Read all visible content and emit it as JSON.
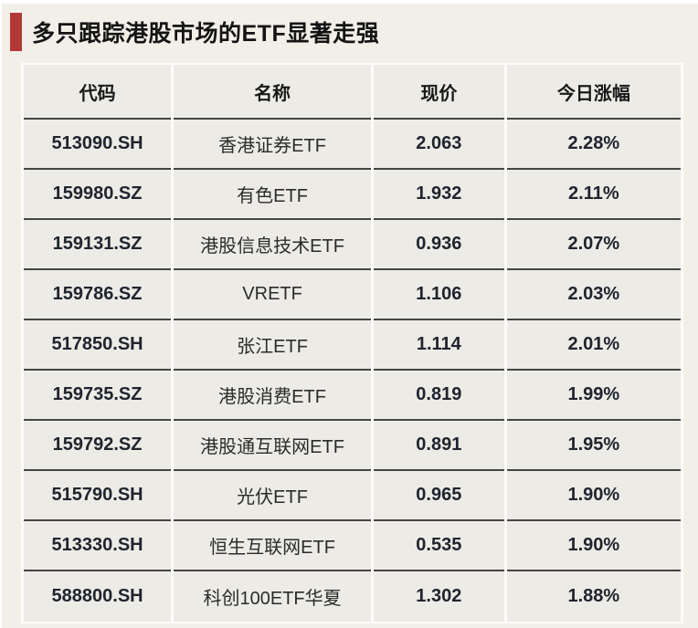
{
  "headline": {
    "title": "多只跟踪港股市场的ETF显著走强"
  },
  "colors": {
    "accent_bar": "#b23a34",
    "page_background": "#f2efe9",
    "cell_background": "#ecebe6",
    "row_divider": "#454545",
    "column_gap": "#fcfbf8",
    "text": "#20242e"
  },
  "chart_data": {
    "type": "table",
    "title": "多只跟踪港股市场的ETF显著走强",
    "columns": [
      "代码",
      "名称",
      "现价",
      "今日涨幅"
    ],
    "rows": [
      [
        "513090.SH",
        "香港证券ETF",
        "2.063",
        "2.28%"
      ],
      [
        "159980.SZ",
        "有色ETF",
        "1.932",
        "2.11%"
      ],
      [
        "159131.SZ",
        "港股信息技术ETF",
        "0.936",
        "2.07%"
      ],
      [
        "159786.SZ",
        "VRETF",
        "1.106",
        "2.03%"
      ],
      [
        "517850.SH",
        "张江ETF",
        "1.114",
        "2.01%"
      ],
      [
        "159735.SZ",
        "港股消费ETF",
        "0.819",
        "1.99%"
      ],
      [
        "159792.SZ",
        "港股通互联网ETF",
        "0.891",
        "1.95%"
      ],
      [
        "515790.SH",
        "光伏ETF",
        "0.965",
        "1.90%"
      ],
      [
        "513330.SH",
        "恒生互联网ETF",
        "0.535",
        "1.90%"
      ],
      [
        "588800.SH",
        "科创100ETF华夏",
        "1.302",
        "1.88%"
      ]
    ],
    "row_cell_names": [
      "cell-code",
      "cell-name",
      "cell-price",
      "cell-change"
    ]
  }
}
